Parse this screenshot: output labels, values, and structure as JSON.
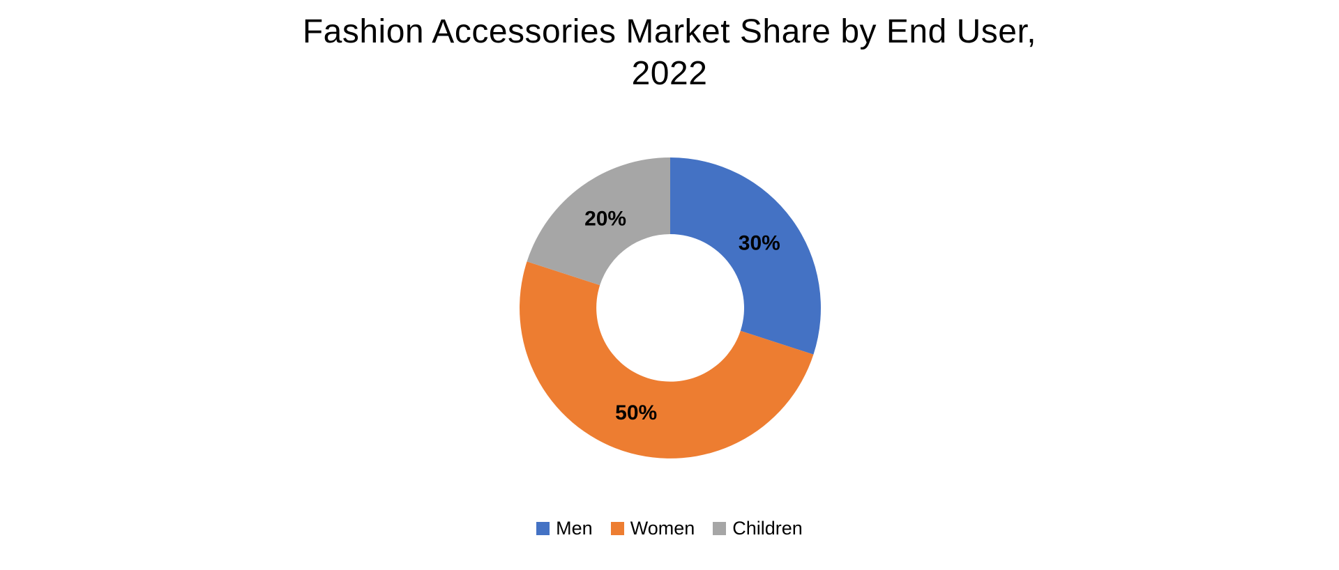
{
  "title": {
    "text": "Fashion Accessories Market Share by End User, 2022",
    "lines": [
      "Fashion Accessories Market Share by End User,",
      "2022"
    ]
  },
  "chart_data": {
    "type": "pie",
    "subtype": "donut",
    "title": "Fashion Accessories Market Share by End User, 2022",
    "categories": [
      "Men",
      "Women",
      "Children"
    ],
    "values": [
      30,
      50,
      20
    ],
    "series": [
      {
        "name": "Men",
        "value": 30,
        "label": "30%",
        "color": "#4472C4"
      },
      {
        "name": "Women",
        "value": 50,
        "label": "50%",
        "color": "#ED7D31"
      },
      {
        "name": "Children",
        "value": 20,
        "label": "20%",
        "color": "#A6A6A6"
      }
    ],
    "start_angle_deg": 0,
    "direction": "clockwise",
    "hole_ratio": 0.49,
    "data_label_color": "#000000",
    "legend_position": "bottom",
    "background": "#FFFFFF"
  }
}
